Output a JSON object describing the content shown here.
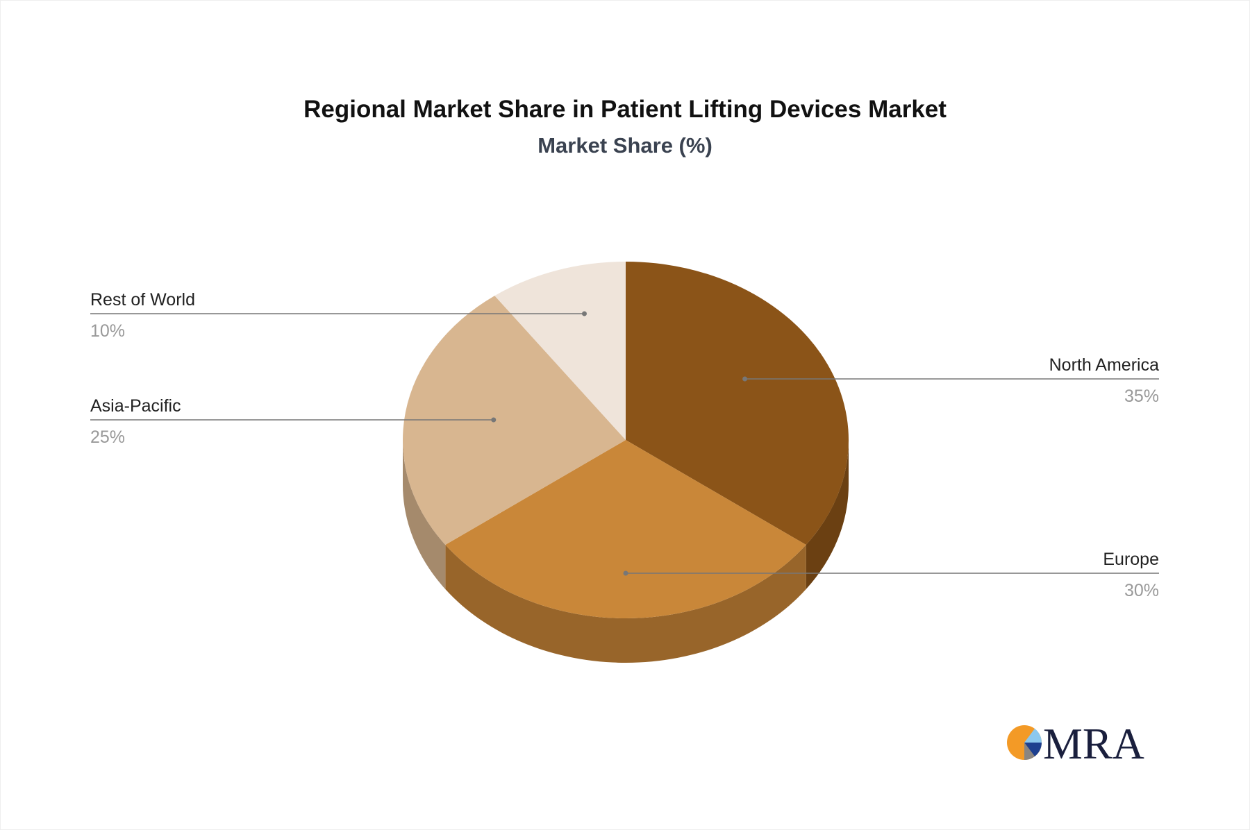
{
  "chart_data": {
    "type": "pie",
    "title": "Regional Market Share in Patient Lifting Devices Market",
    "subtitle": "Market Share (%)",
    "unit": "%",
    "slices": [
      {
        "label": "North America",
        "value": 35,
        "display": "35%",
        "color": "#8B5418",
        "side_color": "#6B4012"
      },
      {
        "label": "Europe",
        "value": 30,
        "display": "30%",
        "color": "#C98739",
        "side_color": "#98652A"
      },
      {
        "label": "Asia-Pacific",
        "value": 25,
        "display": "25%",
        "color": "#D8B690",
        "side_color": "#A58A6C"
      },
      {
        "label": "Rest of World",
        "value": 10,
        "display": "10%",
        "color": "#EFE4DA",
        "side_color": "#C9BEB3"
      }
    ],
    "style": "3d-pie"
  },
  "logo": {
    "text": "MRA"
  }
}
